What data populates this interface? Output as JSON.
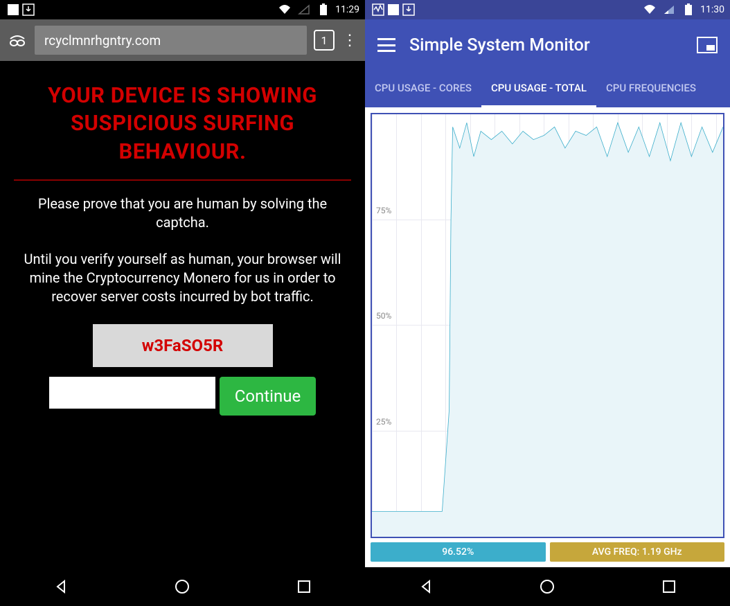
{
  "left": {
    "status": {
      "time": "11:29"
    },
    "urlbar": {
      "url": "rcyclmnrhgntry.com",
      "tabs": "1"
    },
    "warning_title": "YOUR DEVICE IS SHOWING SUSPICIOUS SURFING BEHAVIOUR.",
    "para1": "Please prove that you are human by solving the captcha.",
    "para2": "Until you verify yourself as human, your browser will mine the Cryptocurrency Monero for us in order to recover server costs incurred by bot traffic.",
    "captcha_code": "w3FaSO5R",
    "continue_label": "Continue"
  },
  "right": {
    "status": {
      "time": "11:30"
    },
    "app_title": "Simple System Monitor",
    "tabs": [
      "CPU USAGE - CORES",
      "CPU USAGE - TOTAL",
      "CPU FREQUENCIES"
    ],
    "active_tab": 1,
    "chart": {
      "type": "line",
      "xlim": [
        0,
        100
      ],
      "ylim": [
        0,
        100
      ],
      "ytick_labels": [
        "25%",
        "50%",
        "75%"
      ],
      "ytick_positions": [
        25,
        50,
        75
      ],
      "xgrid_step": 7,
      "line_color": "#3caecb",
      "fill_color": "#e9f5f9",
      "line_width": 2.5,
      "background_color": "#ffffff",
      "grid_color": "#e8e8f0",
      "label_fontsize": 12,
      "label_color": "#888888",
      "data": [
        [
          0,
          6
        ],
        [
          5,
          6
        ],
        [
          10,
          6
        ],
        [
          15,
          6
        ],
        [
          18,
          6
        ],
        [
          20,
          6
        ],
        [
          22,
          30
        ],
        [
          22.5,
          75
        ],
        [
          23,
          97
        ],
        [
          25,
          92
        ],
        [
          27,
          98
        ],
        [
          29,
          90
        ],
        [
          31,
          96
        ],
        [
          34,
          94
        ],
        [
          37,
          96
        ],
        [
          40,
          93
        ],
        [
          43,
          96
        ],
        [
          46,
          94
        ],
        [
          49,
          95
        ],
        [
          52,
          97
        ],
        [
          55,
          92
        ],
        [
          58,
          96
        ],
        [
          61,
          95
        ],
        [
          64,
          97
        ],
        [
          67,
          90
        ],
        [
          70,
          98
        ],
        [
          73,
          91
        ],
        [
          76,
          97
        ],
        [
          79,
          90
        ],
        [
          82,
          98
        ],
        [
          85,
          89
        ],
        [
          88,
          98
        ],
        [
          91,
          90
        ],
        [
          94,
          97
        ],
        [
          97,
          91
        ],
        [
          100,
          97
        ]
      ]
    },
    "stats": {
      "cpu_pct": "96.52%",
      "avg_freq": "AVG FREQ: 1.19 GHz"
    }
  },
  "colors": {
    "warn_red": "#d30000",
    "continue_green": "#2db742",
    "indigo": "#3f51b5",
    "indigo_dark": "#3a4597"
  }
}
